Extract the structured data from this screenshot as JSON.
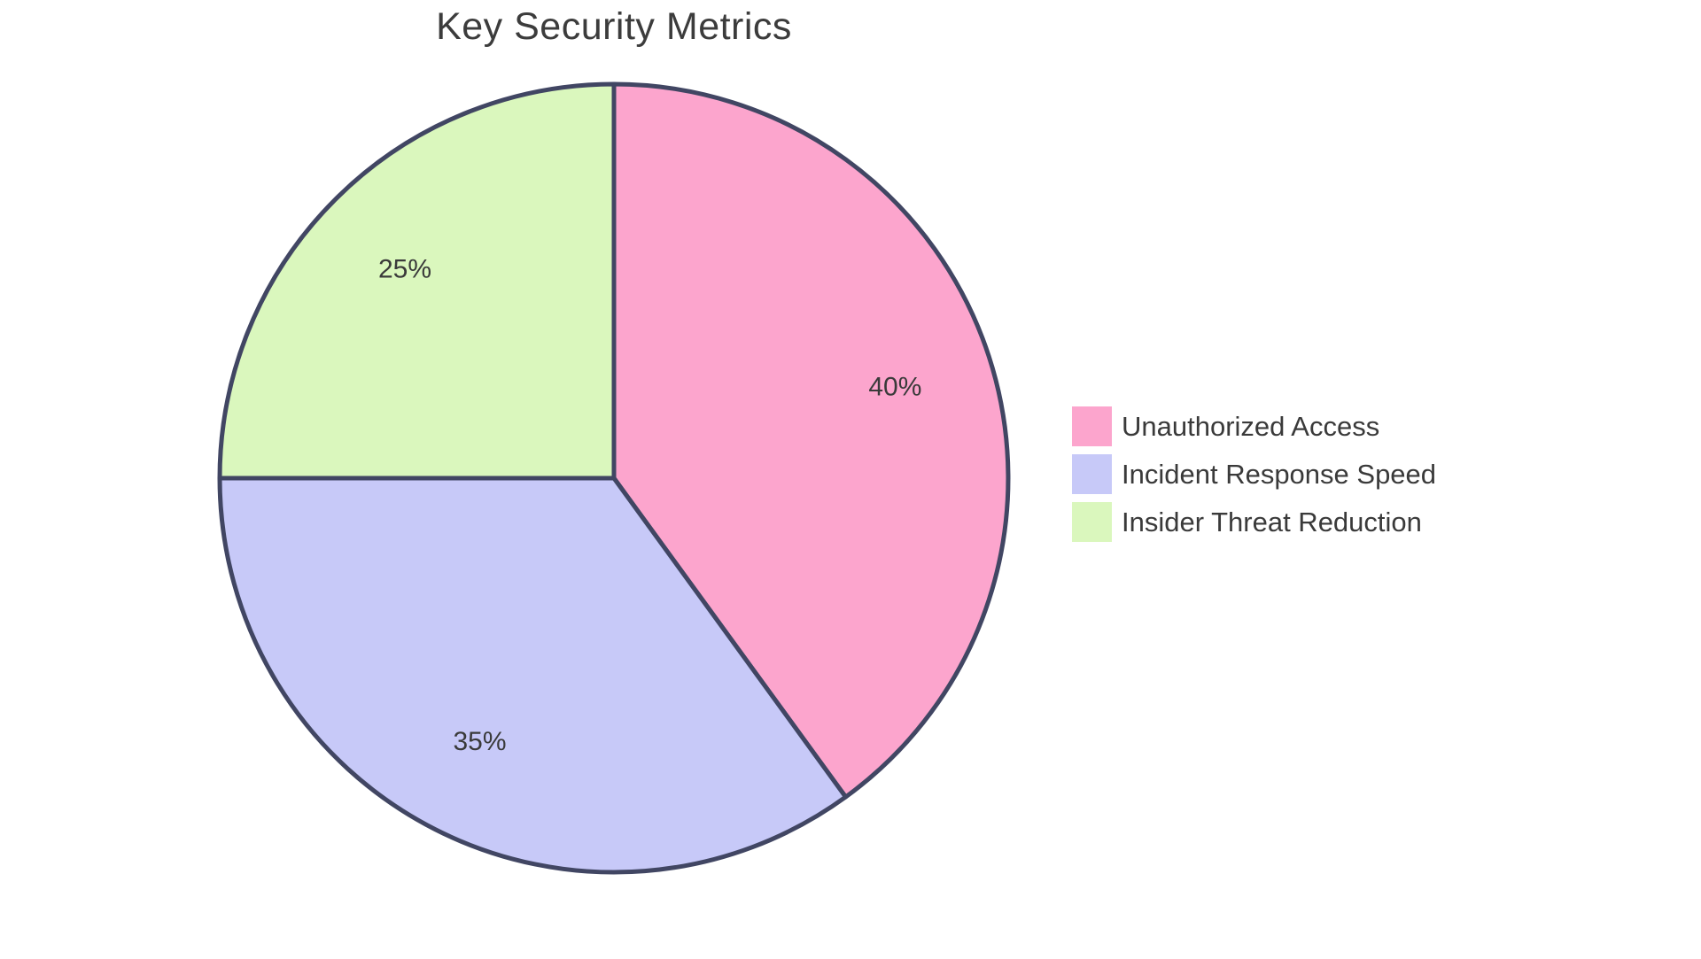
{
  "chart_data": {
    "type": "pie",
    "title": "Key Security Metrics",
    "categories": [
      "Unauthorized Access",
      "Incident Response Speed",
      "Insider Threat Reduction"
    ],
    "values": [
      40,
      35,
      25
    ],
    "slice_labels": [
      "40%",
      "35%",
      "25%"
    ],
    "colors": [
      "#FCA5CD",
      "#C7C9F8",
      "#DAF7BD"
    ],
    "border_color": "#414663",
    "border_width": 5,
    "slice_label_color": "#3A3A3A",
    "title_color": "#3C3C3C",
    "start_angle_deg": 0,
    "direction": "clockwise",
    "legend_position": "right",
    "background": "#FFFFFF"
  }
}
